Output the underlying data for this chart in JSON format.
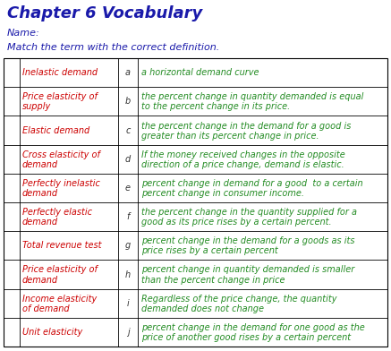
{
  "title": "Chapter 6 Vocabulary",
  "name_label": "Name:",
  "instruction": "Match the term with the correct definition.",
  "title_color": "#1a1aaa",
  "name_color": "#1a1aaa",
  "instruction_color": "#1a1aaa",
  "term_color": "#cc0000",
  "letter_color": "#333333",
  "def_color": "#228b22",
  "bg_color": "#ffffff",
  "rows": [
    {
      "term": "Inelastic demand",
      "letter": "a",
      "def_line1": "a horizontal demand curve",
      "def_line2": ""
    },
    {
      "term": "Price elasticity of",
      "term2": "supply",
      "letter": "b",
      "def_line1": "the percent change in quantity demanded is equal",
      "def_line2": "to the percent change in its price."
    },
    {
      "term": "Elastic demand",
      "term2": "",
      "letter": "c",
      "def_line1": "the percent change in the demand for a good is",
      "def_line2": "greater than its percent change in price."
    },
    {
      "term": "Cross elasticity of",
      "term2": "demand",
      "letter": "d",
      "def_line1": "If the money received changes in the opposite",
      "def_line2": "direction of a price change, demand is elastic."
    },
    {
      "term": "Perfectly inelastic",
      "term2": "demand",
      "letter": "e",
      "def_line1": "percent change in demand for a good  to a certain",
      "def_line2": "percent change in consumer income."
    },
    {
      "term": "Perfectly elastic",
      "term2": "demand",
      "letter": "f",
      "def_line1": "the percent change in the quantity supplied for a",
      "def_line2": "good as its price rises by a certain percent."
    },
    {
      "term": "Total revenue test",
      "term2": "",
      "letter": "g",
      "def_line1": "percent change in the demand for a goods as its",
      "def_line2": "price rises by a certain percent"
    },
    {
      "term": "Price elasticity of",
      "term2": "demand",
      "letter": "h",
      "def_line1": "percent change in quantity demanded is smaller",
      "def_line2": "than the percent change in price"
    },
    {
      "term": "Income elasticity",
      "term2": "of demand",
      "letter": "i",
      "def_line1": "Regardless of the price change, the quantity",
      "def_line2": "demanded does not change"
    },
    {
      "term": "Unit elasticity",
      "term2": "",
      "letter": "j",
      "def_line1": "percent change in the demand for one good as the",
      "def_line2": "price of another good rises by a certain percent"
    }
  ],
  "font_family": "Comic Sans MS",
  "title_fontsize": 13,
  "body_fontsize": 7.0,
  "name_fontsize": 8.0,
  "instr_fontsize": 8.0
}
